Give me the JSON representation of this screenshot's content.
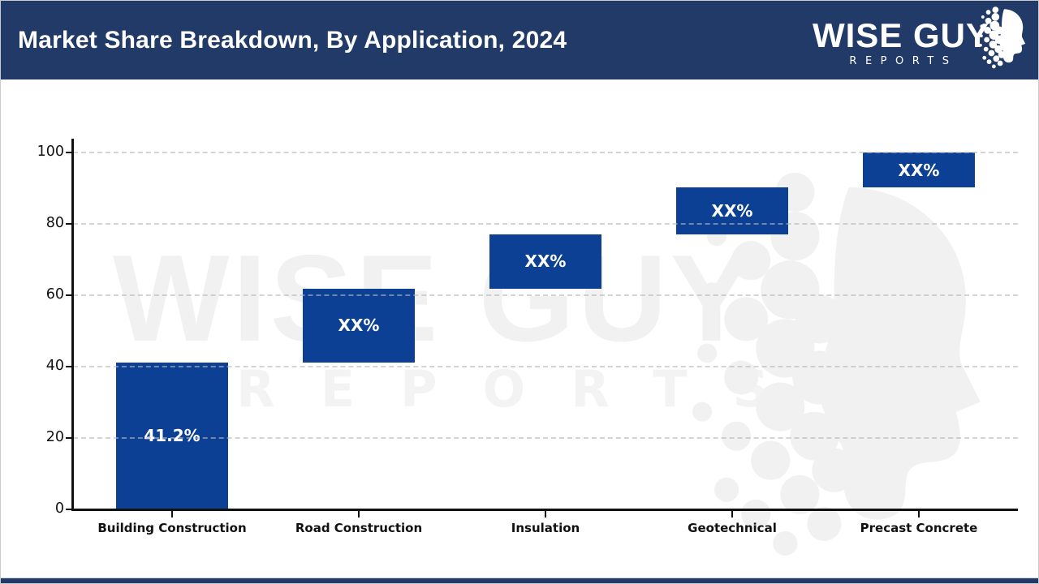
{
  "header": {
    "title": "Market Share Breakdown, By Application, 2024",
    "bg_color": "#213a67",
    "logo": {
      "line1": "WISE GUY",
      "line2": "REPORTS"
    }
  },
  "watermark": {
    "line1": "WISE GUY",
    "line2": "REPORTS"
  },
  "footer": {
    "bar_color": "#213a67"
  },
  "chart_data": {
    "type": "bar",
    "subtype": "waterfall",
    "title": "Market Share Breakdown, By Application, 2024",
    "xlabel": "",
    "ylabel": "",
    "categories": [
      "Building Construction",
      "Road Construction",
      "Insulation",
      "Geotechnical",
      "Precast Concrete"
    ],
    "segments": [
      {
        "category": "Building Construction",
        "start": 0,
        "end": 41.2,
        "value": 41.2,
        "label": "41.2%"
      },
      {
        "category": "Road Construction",
        "start": 41.2,
        "end": 61.8,
        "value": 20.6,
        "label": "XX%"
      },
      {
        "category": "Insulation",
        "start": 61.8,
        "end": 77.1,
        "value": 15.3,
        "label": "XX%"
      },
      {
        "category": "Geotechnical",
        "start": 77.1,
        "end": 90.2,
        "value": 13.1,
        "label": "XX%"
      },
      {
        "category": "Precast Concrete",
        "start": 90.2,
        "end": 100,
        "value": 9.8,
        "label": "XX%"
      }
    ],
    "yticks": [
      0,
      20,
      40,
      60,
      80,
      100
    ],
    "ylim": [
      0,
      100
    ],
    "grid": true,
    "grid_style": "dashed",
    "legend": "none",
    "bar_color": "#0b4094",
    "grid_color": "#d9d9d9",
    "axis_color": "#111111"
  }
}
